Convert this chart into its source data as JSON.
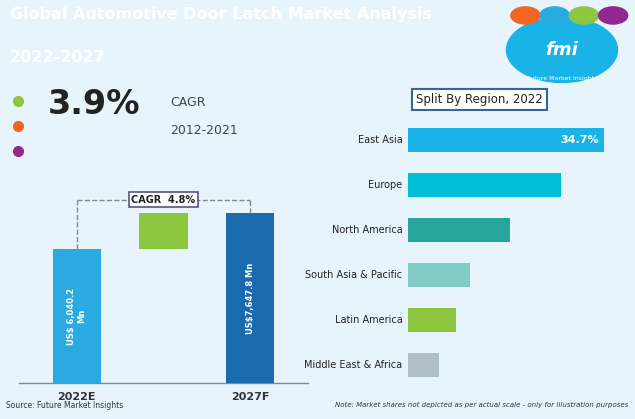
{
  "title_line1": "Global Automotive Door Latch Market Analysis",
  "title_line2": "2022-2027",
  "header_bg": "#1a6aad",
  "header_text_color": "#ffffff",
  "bg_color": "#e8f4fc",
  "cagr_old": "3.9%",
  "dots_colors": [
    "#8dc63f",
    "#f26522",
    "#92278f"
  ],
  "bar_2022_value": 6040.2,
  "bar_2022_label": "US$ 6,040.2\nMn",
  "bar_2027_value": 7647.8,
  "bar_2027_label": "US$7,647.8 Mn",
  "bar_2022_color": "#29abe2",
  "bar_2027_color": "#1a6aad",
  "bar_cagr_color": "#8dc63f",
  "cagr_new_text": "CAGR  4.8%",
  "bar_xticklabels": [
    "2022E",
    "2027F"
  ],
  "region_title": "Split By Region, 2022",
  "regions": [
    "East Asia",
    "Europe",
    "North America",
    "South Asia & Pacific",
    "Latin America",
    "Middle East & Africa"
  ],
  "region_values": [
    34.7,
    27.0,
    18.0,
    11.0,
    8.5,
    5.5
  ],
  "region_colors": [
    "#1ab3e8",
    "#00bcd4",
    "#26a69a",
    "#80cbc4",
    "#8dc63f",
    "#b0bec5"
  ],
  "source_text": "Source: Future Market Insights",
  "note_text": "Note: Market shares not depicted as per actual scale - only for illustration purposes",
  "footer_bg": "#cce5f5",
  "divider_color": "#aaccdd"
}
